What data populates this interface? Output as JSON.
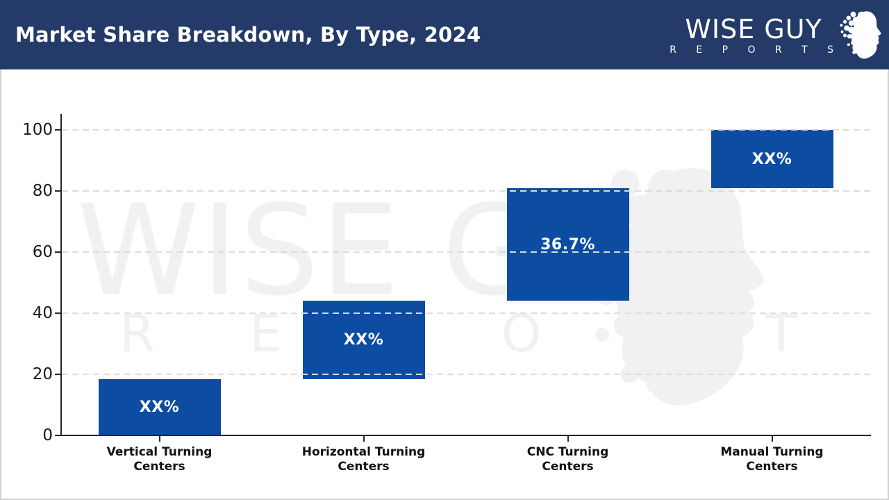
{
  "header": {
    "logo": {
      "line1": "WISE GUY",
      "line2": "R E P O R T S"
    }
  },
  "watermark": {
    "line1": "WISE GUY",
    "line2": "R E P O R T S"
  },
  "colors": {
    "header_bg": "#243A68",
    "bar": "#0C4DA2",
    "bar_label": "#FFFFFF",
    "grid": "#DCDCDC",
    "axis": "#262626",
    "tick_text": "#1A1A1A",
    "watermark": "#F1F1F3",
    "page_border": "#D2D2D2",
    "title_text": "#FFFFFF"
  },
  "chart_data": {
    "type": "bar",
    "subtype": "floating-segment-waterfall",
    "title": "Market Share Breakdown, By Type, 2024",
    "categories": [
      "Vertical Turning Centers",
      "Horizontal Turning Centers",
      "CNC Turning Centers",
      "Manual Turning Centers"
    ],
    "segments": [
      {
        "category": "Vertical Turning Centers",
        "from": 0,
        "to": 18.3,
        "label": "XX%"
      },
      {
        "category": "Horizontal Turning Centers",
        "from": 18.3,
        "to": 44.1,
        "label": "XX%"
      },
      {
        "category": "CNC Turning Centers",
        "from": 44.1,
        "to": 80.8,
        "label": "36.7%"
      },
      {
        "category": "Manual Turning Centers",
        "from": 80.8,
        "to": 100,
        "label": "XX%"
      }
    ],
    "xlabel": "",
    "ylabel": "",
    "ylim": [
      0,
      100
    ],
    "yticks": [
      0,
      20,
      40,
      60,
      80,
      100
    ],
    "grid": "horizontal dashed",
    "legend": false
  }
}
